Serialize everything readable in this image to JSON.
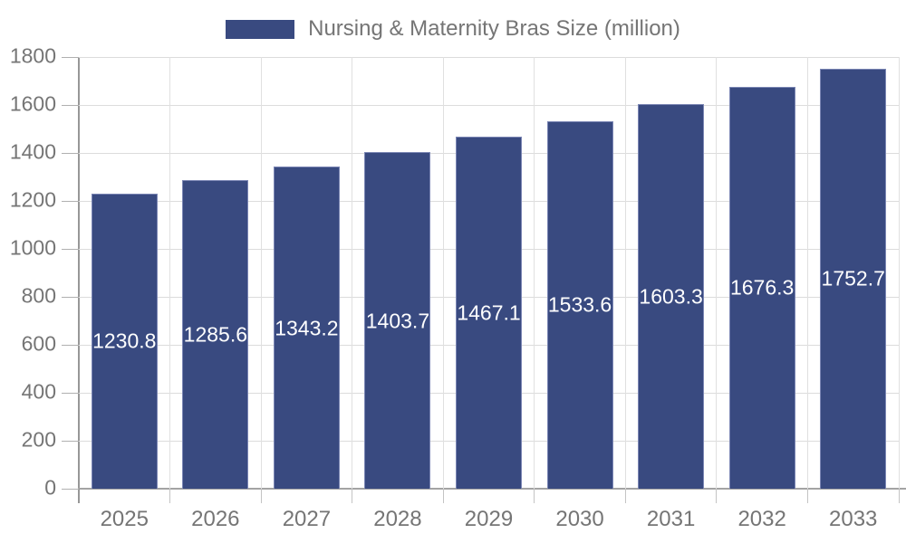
{
  "legend": {
    "swatch_color": "#394a80"
  },
  "chart_data": {
    "type": "bar",
    "title": "Nursing & Maternity Bras Size (million)",
    "categories": [
      "2025",
      "2026",
      "2027",
      "2028",
      "2029",
      "2030",
      "2031",
      "2032",
      "2033"
    ],
    "values": [
      1230.8,
      1285.6,
      1343.2,
      1403.7,
      1467.1,
      1533.6,
      1603.3,
      1676.3,
      1752.7
    ],
    "value_labels": [
      "1230.8",
      "1285.6",
      "1343.2",
      "1403.7",
      "1467.1",
      "1533.6",
      "1603.3",
      "1676.3",
      "1752.7"
    ],
    "xlabel": "",
    "ylabel": "",
    "ylim": [
      0,
      1800
    ],
    "ytick_step": 200,
    "ytick_labels": [
      "0",
      "200",
      "400",
      "600",
      "800",
      "1000",
      "1200",
      "1400",
      "1600",
      "1800"
    ],
    "grid": true,
    "legend_position": "top-center",
    "bar_color": "#394a80",
    "bar_label_color": "#ffffff",
    "axis_text_color": "#757575"
  }
}
